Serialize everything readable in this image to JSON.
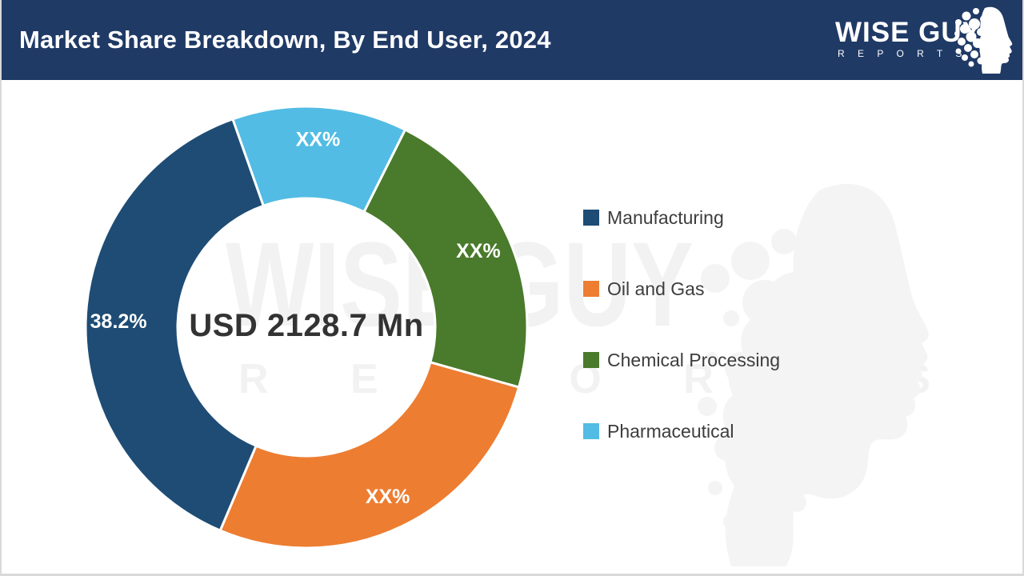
{
  "header": {
    "title": "Market Share Breakdown, By End User, 2024",
    "logo": {
      "name": "WISE GUY",
      "sub": "R E P O R T S",
      "icon": "head-profile-dots-icon"
    }
  },
  "watermark": {
    "line1": "WISE GUY",
    "line2": "R E P O R T S",
    "head_icon": "head-profile-dots-watermark"
  },
  "chart_data": {
    "type": "donut",
    "title": "Market Share Breakdown, By End User, 2024",
    "center_label": "USD 2128.7 Mn",
    "units": "percent share",
    "start_angle_deg": -19.5,
    "segments": [
      {
        "name": "Pharmaceutical",
        "label": "XX%",
        "value_pct": 12.8,
        "color": "#52BCE4"
      },
      {
        "name": "Chemical Processing",
        "label": "XX%",
        "value_pct": 22.0,
        "color": "#4A7A2B"
      },
      {
        "name": "Oil and Gas",
        "label": "XX%",
        "value_pct": 27.0,
        "color": "#ED7D31"
      },
      {
        "name": "Manufacturing",
        "label": "38.2%",
        "value_pct": 38.2,
        "color": "#1E4C74"
      }
    ],
    "legend": {
      "position": "right",
      "items": [
        "Manufacturing",
        "Oil and Gas",
        "Chemical Processing",
        "Pharmaceutical"
      ]
    }
  },
  "colors": {
    "header_bg": "#203A66",
    "center_label_text": "#333333",
    "legend_text": "#3D3D3D",
    "watermark": "#F2F2F2",
    "page_border": "#D9D9D9",
    "separator": "#FFFFFF"
  }
}
